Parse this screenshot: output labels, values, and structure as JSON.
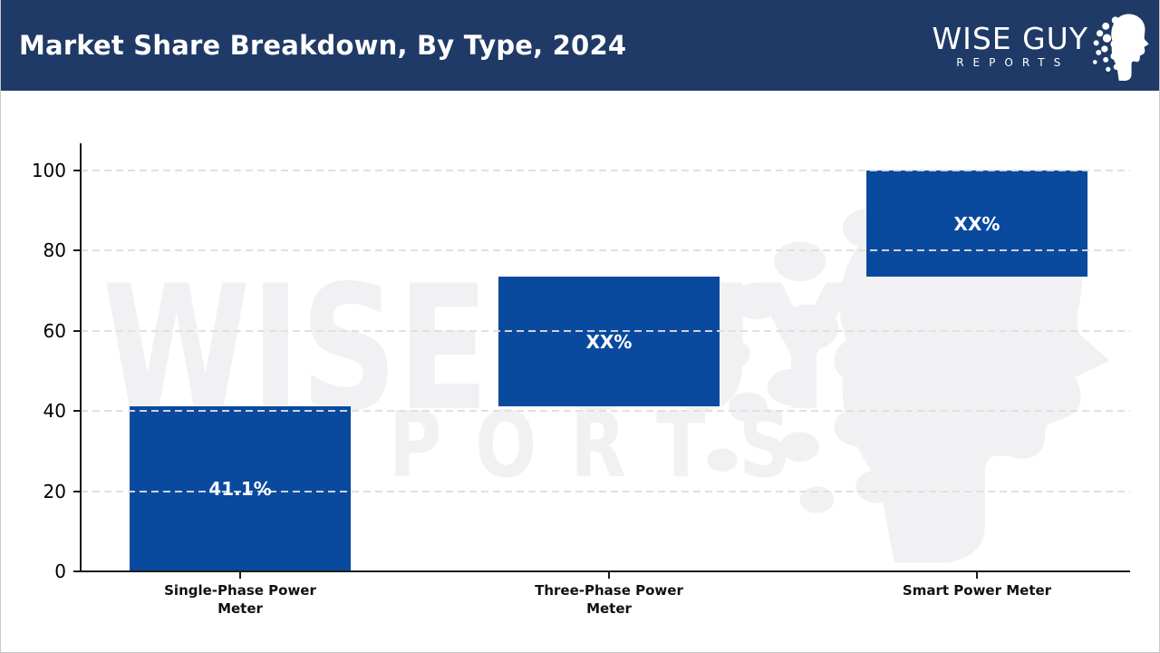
{
  "header": {
    "title": "Market Share Breakdown, By Type, 2024",
    "logo": {
      "wordmark": "WISE GUY",
      "subtitle": "REPORTS"
    }
  },
  "watermark": {
    "line1": "WISE GUY",
    "line2": "REPORTS"
  },
  "chart_data": {
    "type": "bar",
    "variant": "stacked-percentage-waterfall",
    "title": "Market Share Breakdown, By Type, 2024",
    "categories": [
      "Single-Phase Power Meter",
      "Three-Phase Power Meter",
      "Smart Power Meter"
    ],
    "series": [
      {
        "name": "Single-Phase Power Meter",
        "start": 0,
        "end": 41.1,
        "label": "41.1%"
      },
      {
        "name": "Three-Phase Power Meter",
        "start": 41.1,
        "end": 73.5,
        "label": "XX%"
      },
      {
        "name": "Smart Power Meter",
        "start": 73.5,
        "end": 100,
        "label": "XX%"
      }
    ],
    "xlabel": "",
    "ylabel": "",
    "ylim": [
      0,
      100
    ],
    "yticks": [
      0,
      20,
      40,
      60,
      80,
      100
    ],
    "grid": {
      "horizontal": true,
      "style": "dashed",
      "over_bars": true
    },
    "legend": "none",
    "colors": {
      "bar": "#0a4a9e",
      "bar_label": "#ffffff",
      "axis": "#1a1a1a",
      "grid": "#dedede",
      "tick_label": "#000000",
      "header_bg": "#1f3a66"
    }
  }
}
